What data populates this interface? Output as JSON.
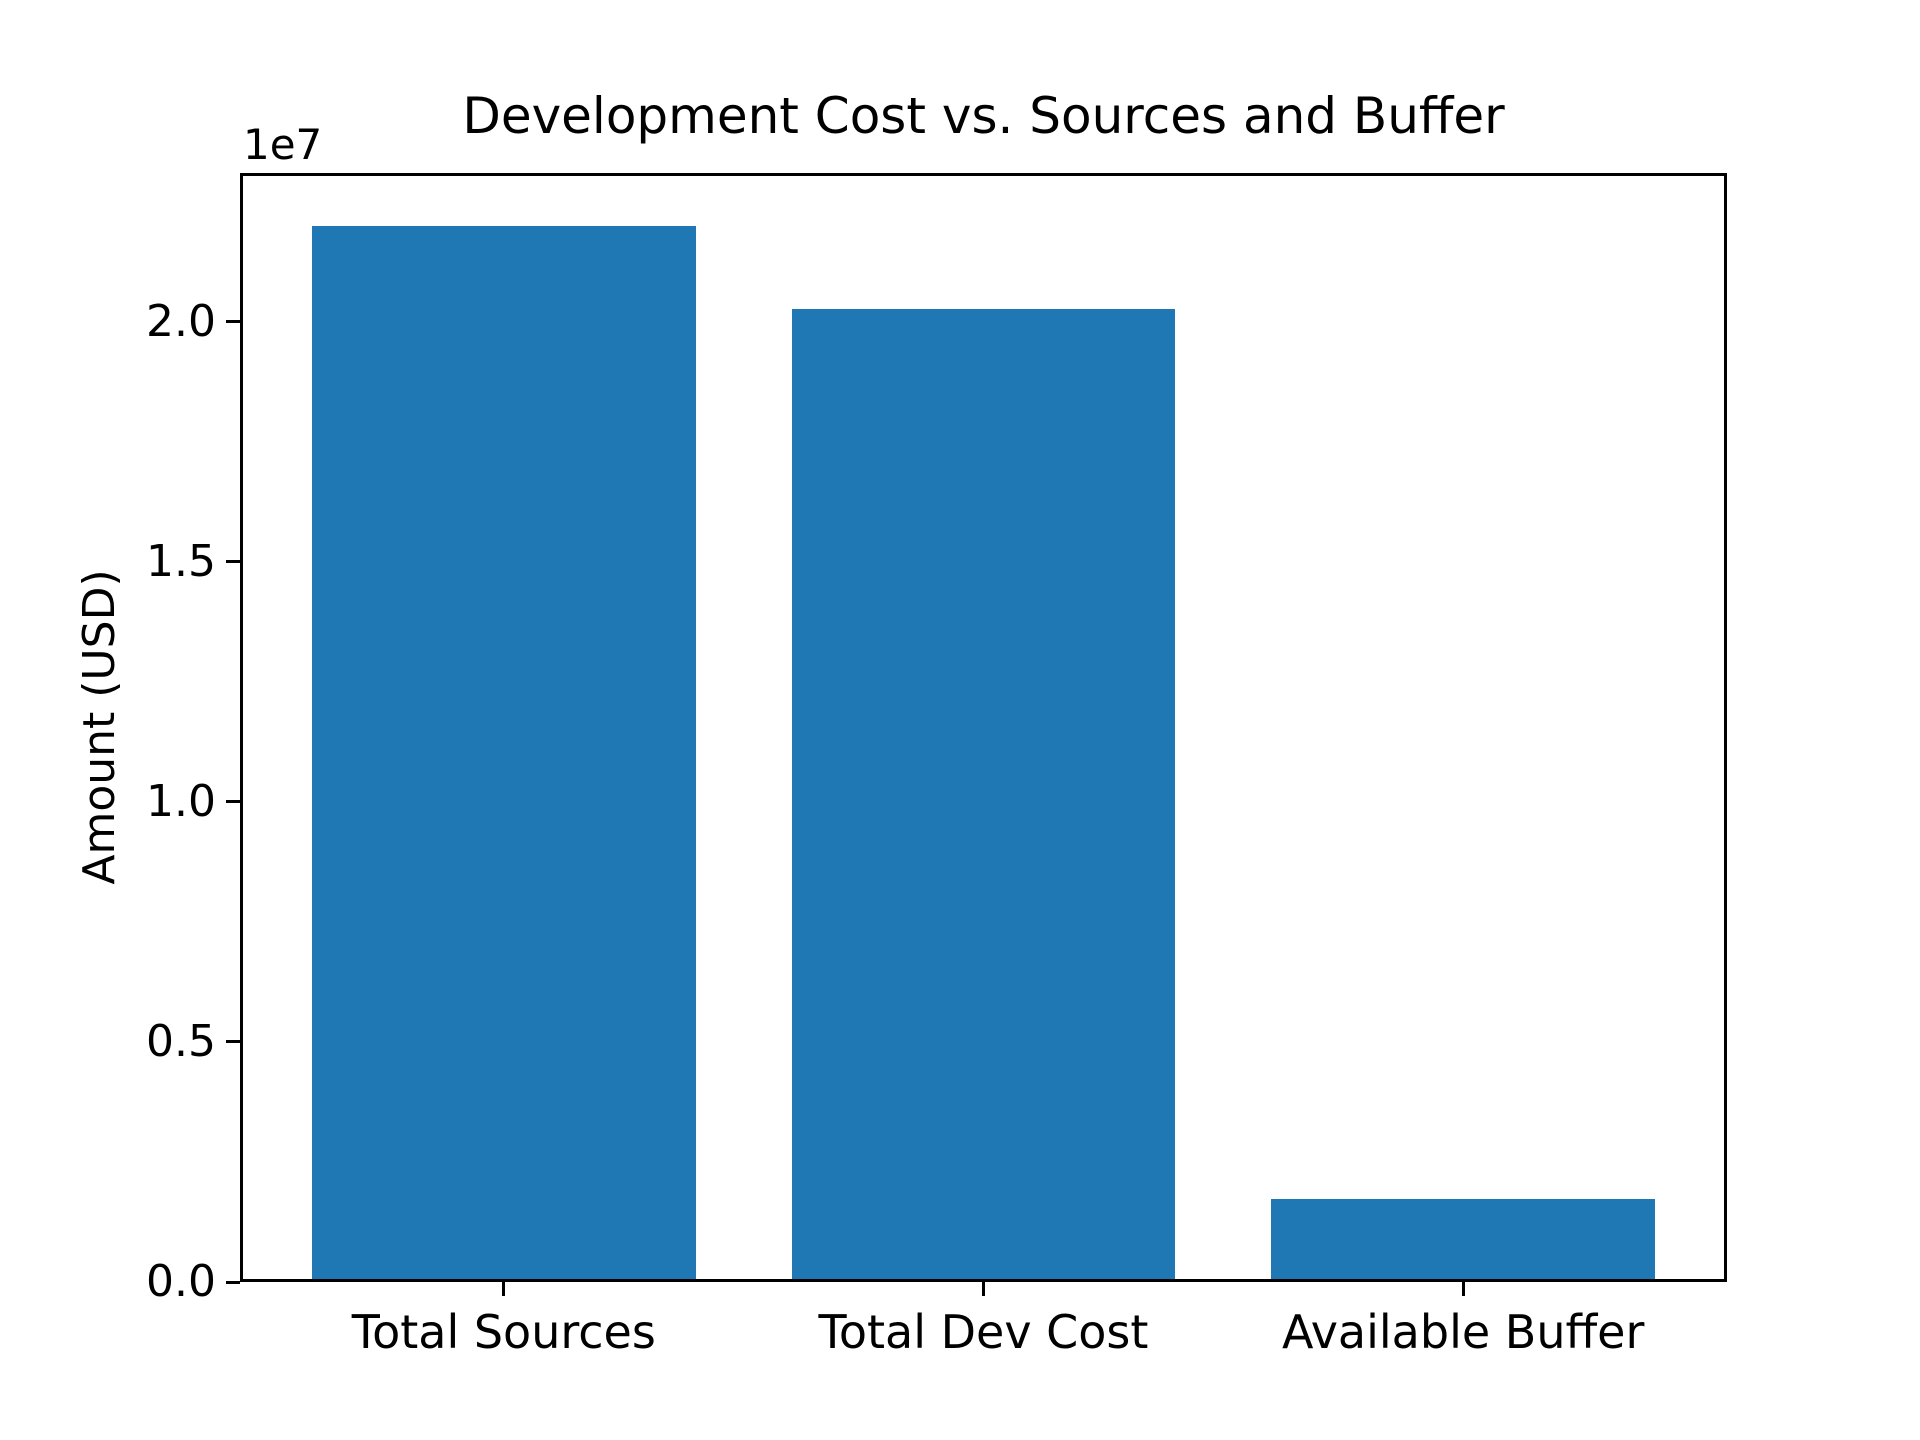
{
  "chart_data": {
    "type": "bar",
    "title": "Development Cost vs. Sources and Buffer",
    "xlabel": "",
    "ylabel": "Amount (USD)",
    "offset_text": "1e7",
    "categories": [
      "Total Sources",
      "Total Dev Cost",
      "Available Buffer"
    ],
    "values": [
      22000000,
      20270000,
      1730000
    ],
    "bar_color": "#1f77b4",
    "axis_color": "#000000",
    "background_color": "#ffffff",
    "ylim": [
      0,
      23100000
    ],
    "yticks": [
      {
        "value": 0,
        "label": "0.0"
      },
      {
        "value": 5000000,
        "label": "0.5"
      },
      {
        "value": 10000000,
        "label": "1.0"
      },
      {
        "value": 15000000,
        "label": "1.5"
      },
      {
        "value": 20000000,
        "label": "2.0"
      }
    ],
    "grid": false,
    "legend": null
  }
}
